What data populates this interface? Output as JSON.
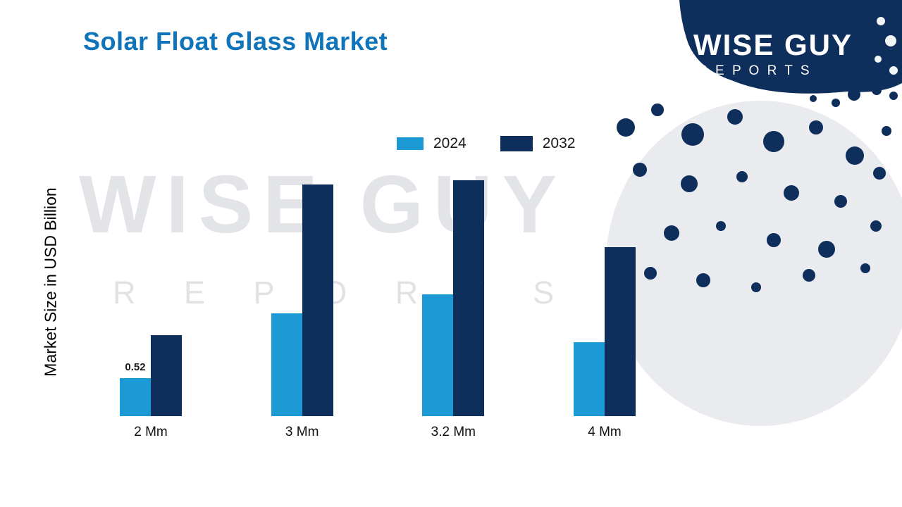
{
  "page": {
    "title": "Solar Float Glass Market"
  },
  "logo": {
    "line1": "WISE GUY",
    "line2": "R E P O R T S"
  },
  "watermark": {
    "line1": "WISE GUY",
    "line2": "R E P O R T S"
  },
  "colors": {
    "title_blue": "#0f74ba",
    "series_2024": "#1b9ad6",
    "series_2032": "#0e2e5c",
    "logo_navy": "#0e2e5c",
    "watermark_gray": "#e9ebee"
  },
  "chart_data": {
    "type": "bar",
    "title": "Solar Float Glass Market",
    "xlabel": "",
    "ylabel": "Market Size in USD Billion",
    "categories": [
      "2 Mm",
      "3 Mm",
      "3.2 Mm",
      "4 Mm"
    ],
    "series": [
      {
        "name": "2024",
        "color": "#1b9ad6",
        "values": [
          0.52,
          1.4,
          1.65,
          1.0
        ]
      },
      {
        "name": "2032",
        "color": "#0e2e5c",
        "values": [
          1.1,
          3.15,
          3.2,
          2.3
        ]
      }
    ],
    "ylim": [
      0,
      3.5
    ],
    "grid": false,
    "legend_position": "top-right",
    "annotations": [
      {
        "text": "0.52",
        "category": "2 Mm",
        "series": "2024"
      }
    ]
  }
}
